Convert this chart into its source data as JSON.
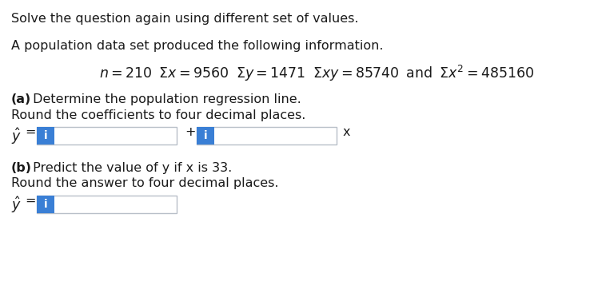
{
  "title_line": "Solve the question again using different set of values.",
  "intro_line": "A population data set produced the following information.",
  "part_a_label1": "(a)",
  "part_a_label2": " Determine the population regression line.",
  "round_coeff": "Round the coefficients to four decimal places.",
  "part_b_label1": "(b)",
  "part_b_label2": " Predict the value of y if x is 33.",
  "round_ans": "Round the answer to four decimal places.",
  "box_color": "#3a7fd5",
  "box_border": "#b8bfc8",
  "background": "#ffffff",
  "text_color": "#1a1a1a",
  "fs": 11.5,
  "fig_w": 7.53,
  "fig_h": 3.62
}
